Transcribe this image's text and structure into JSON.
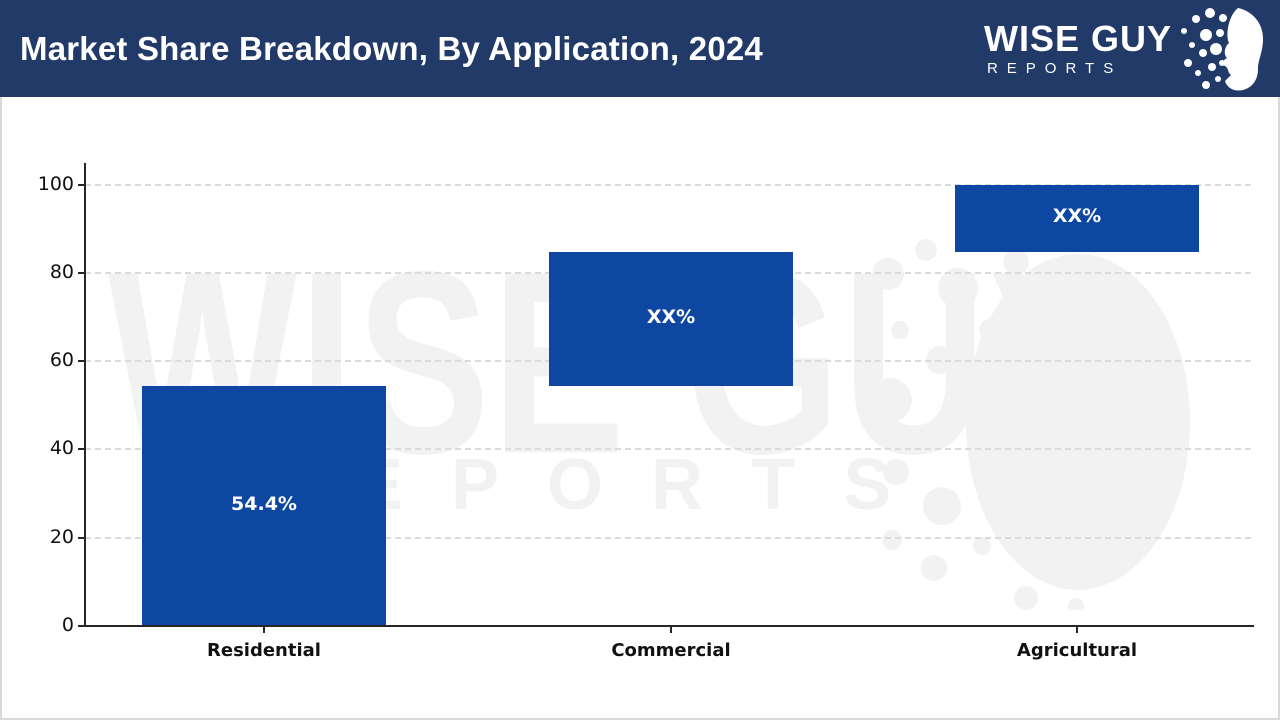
{
  "header": {
    "title": "Market Share Breakdown, By Application, 2024",
    "logo": {
      "line1": "WISE GUY",
      "line2": "REPORTS"
    }
  },
  "watermark": {
    "line1": "WISE GUY",
    "line2": "REPORTS"
  },
  "colors": {
    "header_bg": "#213A68",
    "bar": "#0D47A1",
    "grid": "#DBDBDB",
    "axis": "#262626",
    "watermark": "#F2F2F2",
    "border": "#D9D9D9",
    "bar_label_text": "#FFFFFF"
  },
  "chart_data": {
    "type": "bar",
    "subtype": "waterfall",
    "title": "Market Share Breakdown, By Application, 2024",
    "categories": [
      "Residential",
      "Commercial",
      "Agricultural"
    ],
    "series": [
      {
        "name": "Market Share",
        "starts": [
          0,
          54.4,
          84.8
        ],
        "ends": [
          54.4,
          84.8,
          100
        ]
      }
    ],
    "bar_labels": [
      "54.4%",
      "XX%",
      "XX%"
    ],
    "yticks": [
      0,
      20,
      40,
      60,
      80,
      100
    ],
    "ylim": [
      0,
      105
    ],
    "xlabel": "",
    "ylabel": "",
    "grid": "horizontal-dashed",
    "legend": "none"
  }
}
